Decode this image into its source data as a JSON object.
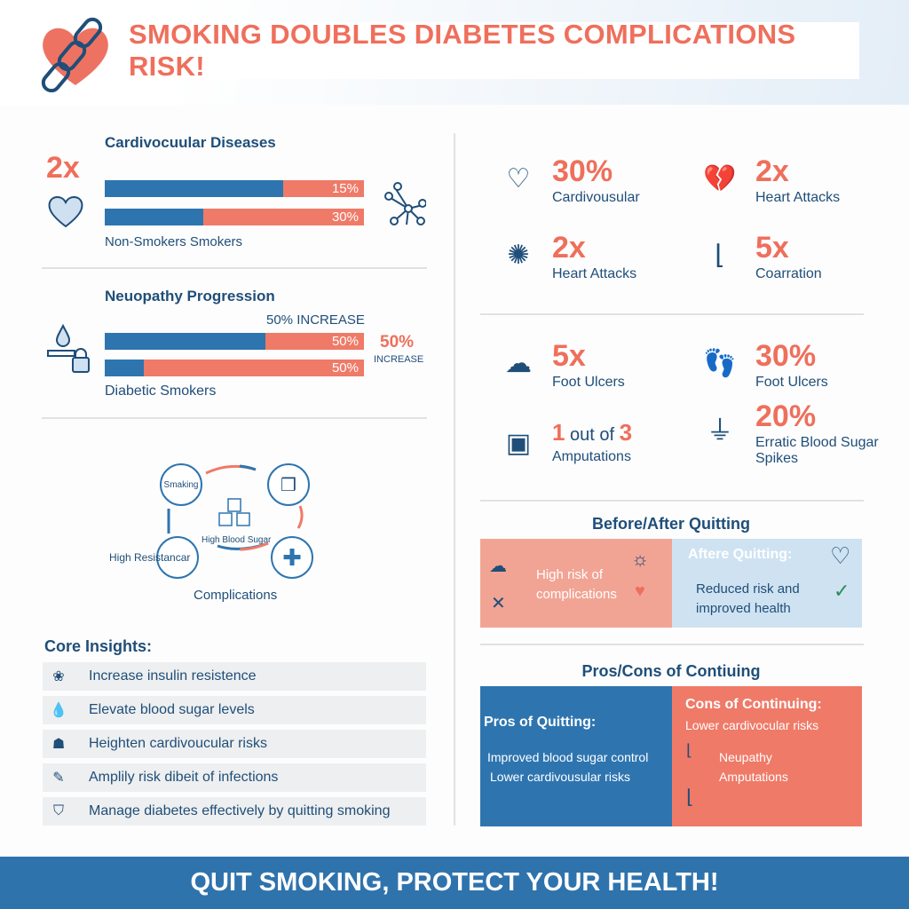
{
  "header": {
    "title": "SMOKING DOUBLES DIABETES COMPLICATIONS RISK!"
  },
  "cardio": {
    "title": "Cardivocuular Diseases",
    "multiplier": "2x",
    "bars": [
      {
        "blue_pct": 69,
        "label": "15%"
      },
      {
        "blue_pct": 38,
        "label": "30%"
      }
    ],
    "legend": "Non-Smokers Smokers"
  },
  "neuro": {
    "title": "Neuopathy Progression",
    "top_label": "50% INCREASE",
    "bars": [
      {
        "blue_pct": 62,
        "label": "50%"
      },
      {
        "blue_pct": 15,
        "label": "50%"
      }
    ],
    "side_value": "50%",
    "side_label": "INCREASE",
    "legend": "Diabetic Smokers"
  },
  "cycle": {
    "smoking": "Smaking",
    "center": "High Blood Sugar",
    "left": "High Resistancar",
    "bottom": "Complications"
  },
  "insights": {
    "title": "Core Insights:",
    "items": [
      {
        "icon": "brain-icon",
        "text": "Increase insulin resistence"
      },
      {
        "icon": "drop-icon",
        "text": "Elevate blood sugar levels"
      },
      {
        "icon": "body-icon",
        "text": "Heighten cardivoucular risks"
      },
      {
        "icon": "bandage-icon",
        "text": "Amplily risk dibeit of infections"
      },
      {
        "icon": "shield-check-icon",
        "text": "Manage diabetes effectively by quitting smoking"
      }
    ]
  },
  "stats": [
    {
      "icon": "heart-icon",
      "value": "30%",
      "label": "Cardivousular"
    },
    {
      "icon": "broken-heart-icon",
      "value": "2x",
      "label": "Heart Attacks"
    },
    {
      "icon": "neuron-icon",
      "value": "2x",
      "label": "Heart Attacks"
    },
    {
      "icon": "foot-icon",
      "value": "5x",
      "label": "Coarration"
    },
    {
      "icon": "cloud-rain-icon",
      "value": "5x",
      "label": "Foot Ulcers"
    },
    {
      "icon": "footprint-icon",
      "value": "30%",
      "label": "Foot Ulcers"
    },
    {
      "icon": "glucose-meter-icon",
      "value_a": "1",
      "value_mid": " out of ",
      "value_b": "3",
      "label": "Amputations"
    },
    {
      "icon": "prosthetic-leg-icon",
      "value": "20%",
      "label": "Erratic Blood Sugar Spikes"
    }
  ],
  "before_after": {
    "title": "Before/After Quitting",
    "before": "High risk of complications",
    "after_title": "Aftere Quitting:",
    "after": "Reduced risk and improved health"
  },
  "pros_cons": {
    "title": "Pros/Cons of Contiuing",
    "pros_title": "Pros of Quitting:",
    "pros": [
      "Improved blood sugar control",
      "Lower cardivousular risks"
    ],
    "cons_title": "Cons of Continuing:",
    "cons": [
      "Lower cardivocular risks",
      "Neupathy",
      "Amputations"
    ]
  },
  "footer": {
    "text": "QUIT SMOKING, PROTECT YOUR HEALTH!"
  },
  "colors": {
    "blue": "#2e75b0",
    "coral": "#ef7a68",
    "navy": "#1f4e79"
  }
}
